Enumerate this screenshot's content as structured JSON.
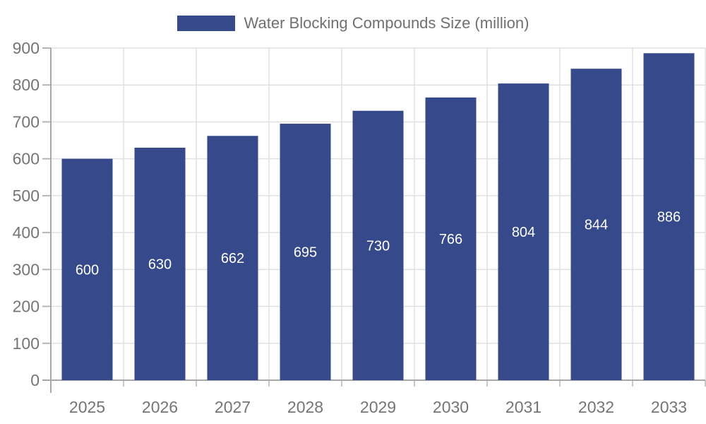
{
  "chart_data": {
    "type": "bar",
    "title": "Water Blocking Compounds Size (million)",
    "categories": [
      "2025",
      "2026",
      "2027",
      "2028",
      "2029",
      "2030",
      "2031",
      "2032",
      "2033"
    ],
    "series": [
      {
        "name": "Water Blocking Compounds Size (million)",
        "values": [
          600,
          630,
          662,
          695,
          730,
          766,
          804,
          844,
          886
        ]
      }
    ],
    "xlabel": "",
    "ylabel": "",
    "ylim": [
      0,
      900
    ],
    "ytick_step": 100,
    "ytick_labels": [
      "0",
      "100",
      "200",
      "300",
      "400",
      "500",
      "600",
      "700",
      "800",
      "900"
    ],
    "grid": true,
    "legend_position": "top",
    "value_labels": "inside-center",
    "colors": {
      "bar": "#36498a",
      "grid": "#e0e0e0",
      "axis": "#a8a8a8",
      "tick": "#b5b5b5",
      "axis_text": "#757575",
      "legend_text": "#707070",
      "value_label": "#ffffff"
    }
  }
}
